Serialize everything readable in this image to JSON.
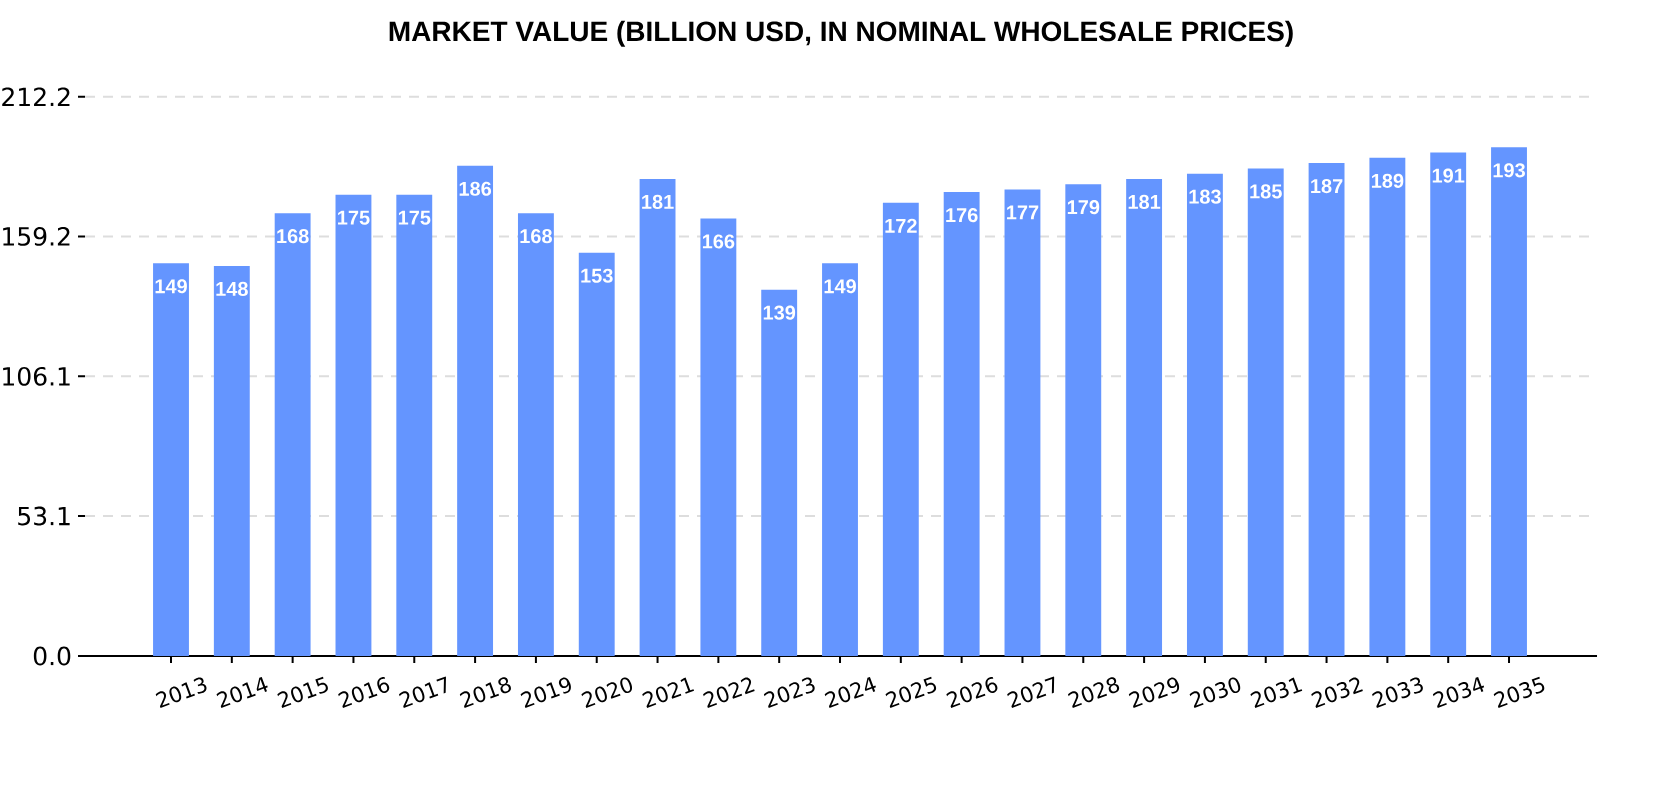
{
  "chart_data": {
    "type": "bar",
    "title": "MARKET VALUE (BILLION USD, IN NOMINAL WHOLESALE PRICES)",
    "categories": [
      "2013",
      "2014",
      "2015",
      "2016",
      "2017",
      "2018",
      "2019",
      "2020",
      "2021",
      "2022",
      "2023",
      "2024",
      "2025",
      "2026",
      "2027",
      "2028",
      "2029",
      "2030",
      "2031",
      "2032",
      "2033",
      "2034",
      "2035"
    ],
    "values": [
      149,
      148,
      168,
      175,
      175,
      186,
      168,
      153,
      181,
      166,
      139,
      149,
      172,
      176,
      177,
      179,
      181,
      183,
      185,
      187,
      189,
      191,
      193
    ],
    "color": "#6495ff",
    "data_labels": true,
    "ylim": [
      0,
      212.2
    ],
    "yticks": [
      {
        "value": 0,
        "label": "0.0"
      },
      53.1,
      106.1,
      159.2,
      212.2
    ],
    "grid": "y"
  }
}
